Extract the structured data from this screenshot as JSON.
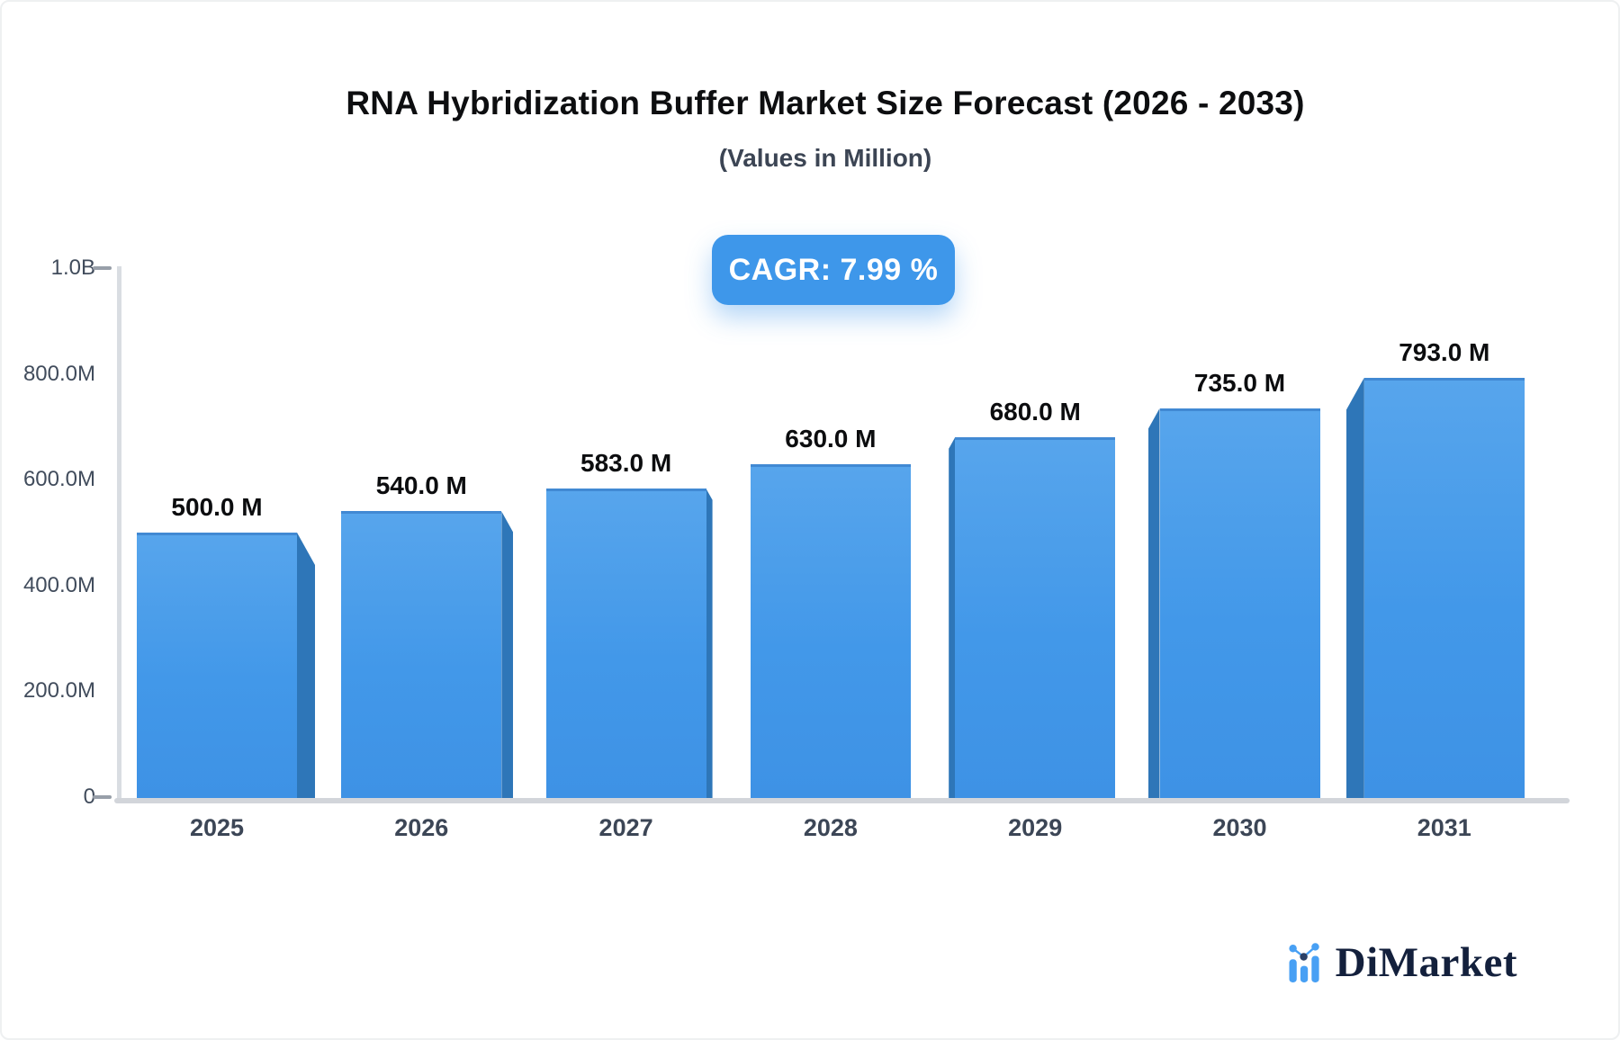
{
  "header": {
    "title": "RNA Hybridization Buffer Market Size Forecast (2026 - 2033)",
    "subtitle": "(Values in Million)",
    "cagr_label": "CAGR: 7.99 %"
  },
  "chart_data": {
    "type": "bar",
    "title": "RNA Hybridization Buffer Market Size Forecast (2026 - 2033)",
    "subtitle": "(Values in Million)",
    "cagr_percent": 7.99,
    "categories": [
      "2025",
      "2026",
      "2027",
      "2028",
      "2029",
      "2030",
      "2031"
    ],
    "values": [
      500.0,
      540.0,
      583.0,
      630.0,
      680.0,
      735.0,
      793.0
    ],
    "bar_labels": [
      "500.0 M",
      "540.0 M",
      "583.0 M",
      "630.0 M",
      "680.0 M",
      "735.0 M",
      "793.0 M"
    ],
    "xlabel": "",
    "ylabel": "",
    "ylim": [
      0,
      1000
    ],
    "yticks": [
      {
        "label": "1.0B",
        "value": 1000,
        "dash": true
      },
      {
        "label": "800.0M",
        "value": 800,
        "dash": false
      },
      {
        "label": "600.0M",
        "value": 600,
        "dash": false
      },
      {
        "label": "400.0M",
        "value": 400,
        "dash": false
      },
      {
        "label": "200.0M",
        "value": 200,
        "dash": false
      },
      {
        "label": "0",
        "value": 0,
        "dash": true
      }
    ],
    "grid": false,
    "legend": null,
    "bar_style": "3d-perspective",
    "bar_face_color": "#459ae9",
    "bar_side_color": "#2e76b8",
    "accent_color": "#3e97ea"
  },
  "branding": {
    "name": "DiMarket",
    "icon": "mini-bar-line-chart-icon",
    "icon_bar_color": "#48a0f4",
    "icon_dot_color": "#48a0f4",
    "icon_mid_dot_color": "#2b4066",
    "text_color": "#13203c"
  }
}
